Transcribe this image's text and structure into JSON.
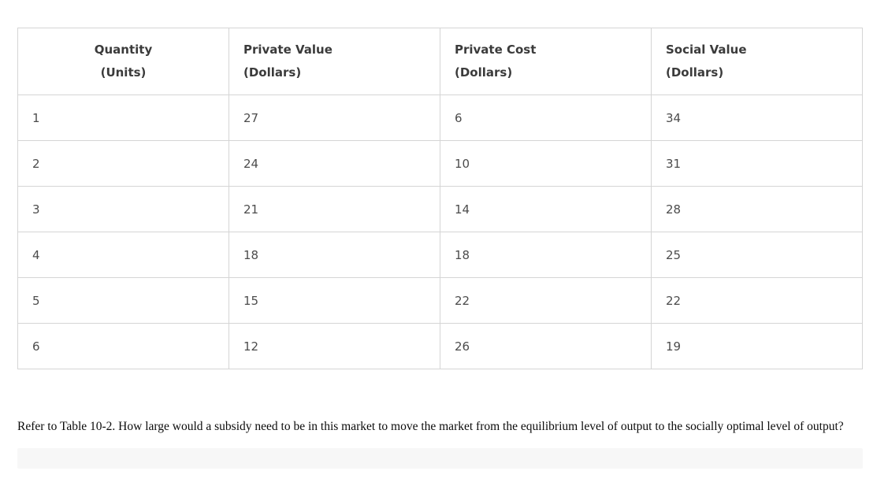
{
  "table": {
    "name": "Table 10-2",
    "headers": [
      {
        "title": "Quantity",
        "unit": "(Units)"
      },
      {
        "title": "Private Value",
        "unit": "(Dollars)"
      },
      {
        "title": "Private Cost",
        "unit": "(Dollars)"
      },
      {
        "title": "Social Value",
        "unit": "(Dollars)"
      }
    ],
    "rows": [
      {
        "quantity": "1",
        "private_value": "27",
        "private_cost": "6",
        "social_value": "34"
      },
      {
        "quantity": "2",
        "private_value": "24",
        "private_cost": "10",
        "social_value": "31"
      },
      {
        "quantity": "3",
        "private_value": "21",
        "private_cost": "14",
        "social_value": "28"
      },
      {
        "quantity": "4",
        "private_value": "18",
        "private_cost": "18",
        "social_value": "25"
      },
      {
        "quantity": "5",
        "private_value": "15",
        "private_cost": "22",
        "social_value": "22"
      },
      {
        "quantity": "6",
        "private_value": "12",
        "private_cost": "26",
        "social_value": "19"
      }
    ]
  },
  "question": {
    "text": "Refer to Table 10-2. How large would a subsidy need to be in this market to move the market from the equilibrium level of output to the socially optimal level of output?"
  },
  "colors": {
    "table_border": "#d5d5d5",
    "header_text": "#3b3b3b",
    "cell_text": "#4c4c4c",
    "question_text": "#0b0b0b",
    "answer_option_bg": "#f7f7f7",
    "page_bg": "#ffffff"
  }
}
